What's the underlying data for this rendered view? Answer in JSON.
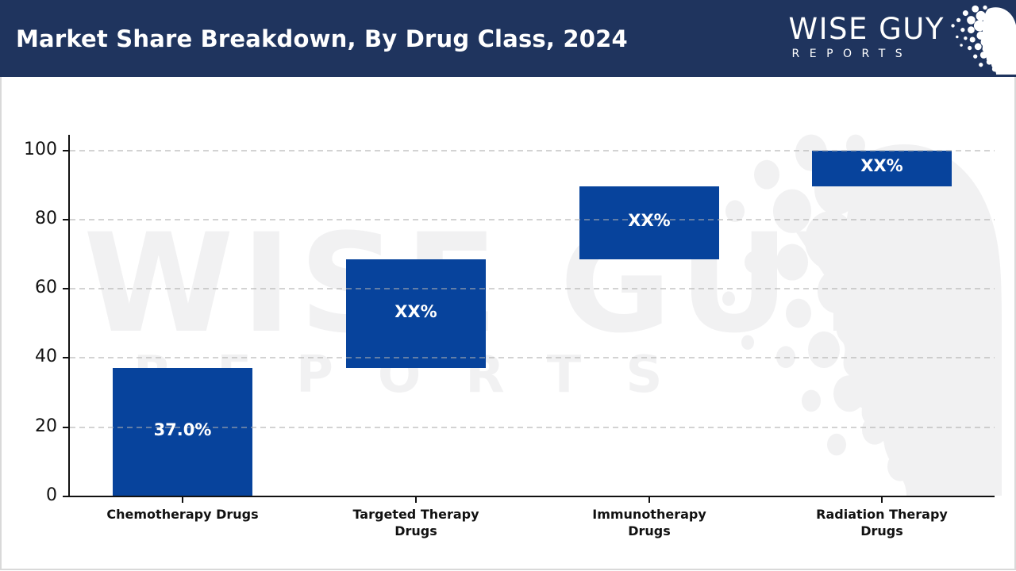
{
  "header": {
    "title": "Market Share Breakdown, By Drug Class, 2024",
    "bg_color": "#1F345E",
    "title_color": "#FFFFFF",
    "logo": {
      "line1": "WISE GUY",
      "line2": "REPORTS",
      "face_icon": "dotted-head-profile-icon"
    }
  },
  "watermark": {
    "line1": "WISE GUY",
    "line2": "REPORTS",
    "color": "#F1F1F2",
    "face_icon": "dotted-head-profile-watermark"
  },
  "colors": {
    "bar": "#07439C",
    "bar_label": "#FFFFFF",
    "grid": "#AFAFAF",
    "axis": "#111111",
    "frame_border": "#D9D9D9",
    "header_bg": "#1F345E"
  },
  "chart_data": {
    "type": "bar",
    "subtype": "waterfall-floating-bars",
    "title": "Market Share Breakdown, By Drug Class, 2024",
    "xlabel": "",
    "ylabel": "",
    "ylim": [
      0,
      104
    ],
    "yticks": [
      0,
      20,
      40,
      60,
      80,
      100
    ],
    "grid": "horizontal-dashed",
    "legend": "none",
    "categories": [
      "Chemotherapy Drugs",
      "Targeted Therapy Drugs",
      "Immunotherapy Drugs",
      "Radiation Therapy Drugs"
    ],
    "category_lines": [
      [
        "Chemotherapy Drugs"
      ],
      [
        "Targeted Therapy",
        "Drugs"
      ],
      [
        "Immunotherapy",
        "Drugs"
      ],
      [
        "Radiation Therapy",
        "Drugs"
      ]
    ],
    "segments": [
      {
        "category": "Chemotherapy Drugs",
        "start": 0,
        "end": 37,
        "label": "37.0%"
      },
      {
        "category": "Targeted Therapy Drugs",
        "start": 37,
        "end": 68.5,
        "label": "XX%"
      },
      {
        "category": "Immunotherapy Drugs",
        "start": 68.5,
        "end": 89.5,
        "label": "XX%"
      },
      {
        "category": "Radiation Therapy Drugs",
        "start": 89.5,
        "end": 100,
        "label": "XX%"
      }
    ],
    "bar_color": "#07439C",
    "bar_label_color": "#FFFFFF"
  }
}
